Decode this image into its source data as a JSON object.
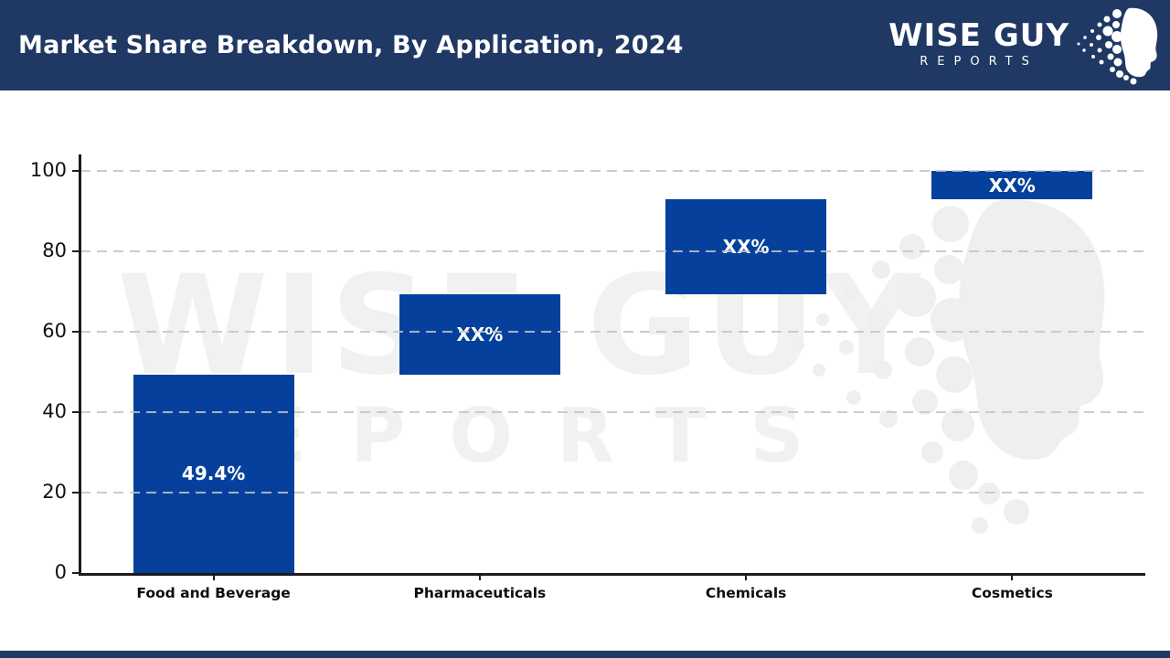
{
  "header": {
    "title": "Market Share Breakdown, By Application, 2024",
    "bg_color": "#1f3864",
    "logo": {
      "line1": "WISE GUY",
      "line2": "REPORTS"
    }
  },
  "watermark": {
    "line1": "WISE GUY",
    "line2": "REPORTS"
  },
  "footer": {
    "bg_color": "#1f3864"
  },
  "chart_data": {
    "type": "bar",
    "subtype": "waterfall-stacked-percentage",
    "title": "Market Share Breakdown, By Application, 2024",
    "categories": [
      "Food and Beverage",
      "Pharmaceuticals",
      "Chemicals",
      "Cosmetics"
    ],
    "segments": [
      {
        "category": "Food and Beverage",
        "start": 0,
        "end": 49.4,
        "value": 49.4,
        "label": "49.4%"
      },
      {
        "category": "Pharmaceuticals",
        "start": 49.4,
        "end": 69.3,
        "value": 19.9,
        "label": "XX%"
      },
      {
        "category": "Chemicals",
        "start": 69.3,
        "end": 92.9,
        "value": 23.6,
        "label": "XX%"
      },
      {
        "category": "Cosmetics",
        "start": 92.9,
        "end": 100,
        "value": 7.1,
        "label": "XX%"
      }
    ],
    "yticks": [
      0,
      20,
      40,
      60,
      80,
      100
    ],
    "ylim": [
      0,
      104
    ],
    "xlabel": "",
    "ylabel": "",
    "grid": true,
    "grid_style": "dashed",
    "legend": false,
    "bar_color": "#05419c",
    "grid_color": "#c9c9c9",
    "axis_color": "#1c1c1c",
    "label_color_inside": "#ffffff"
  }
}
